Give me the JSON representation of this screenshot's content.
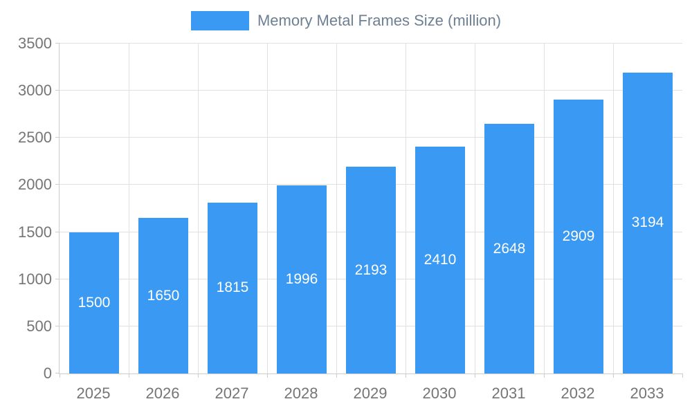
{
  "chart_data": {
    "type": "bar",
    "title": "Memory Metal Frames Size (million)",
    "categories": [
      "2025",
      "2026",
      "2027",
      "2028",
      "2029",
      "2030",
      "2031",
      "2032",
      "2033"
    ],
    "values": [
      1500,
      1650,
      1815,
      1996,
      2193,
      2410,
      2648,
      2909,
      3194
    ],
    "xlabel": "",
    "ylabel": "",
    "ylim": [
      0,
      3500
    ],
    "ytick_step": 500,
    "grid": "on",
    "legend_position": "top-center",
    "value_labels": "inside-center",
    "colors": {
      "bar": "#3a99f2",
      "title_text": "#6d7f92",
      "axis_text": "#757575",
      "grid_line": "#e0e0e0",
      "axis_line": "#cccccc",
      "value_label": "#ffffff",
      "background": "#ffffff"
    }
  }
}
